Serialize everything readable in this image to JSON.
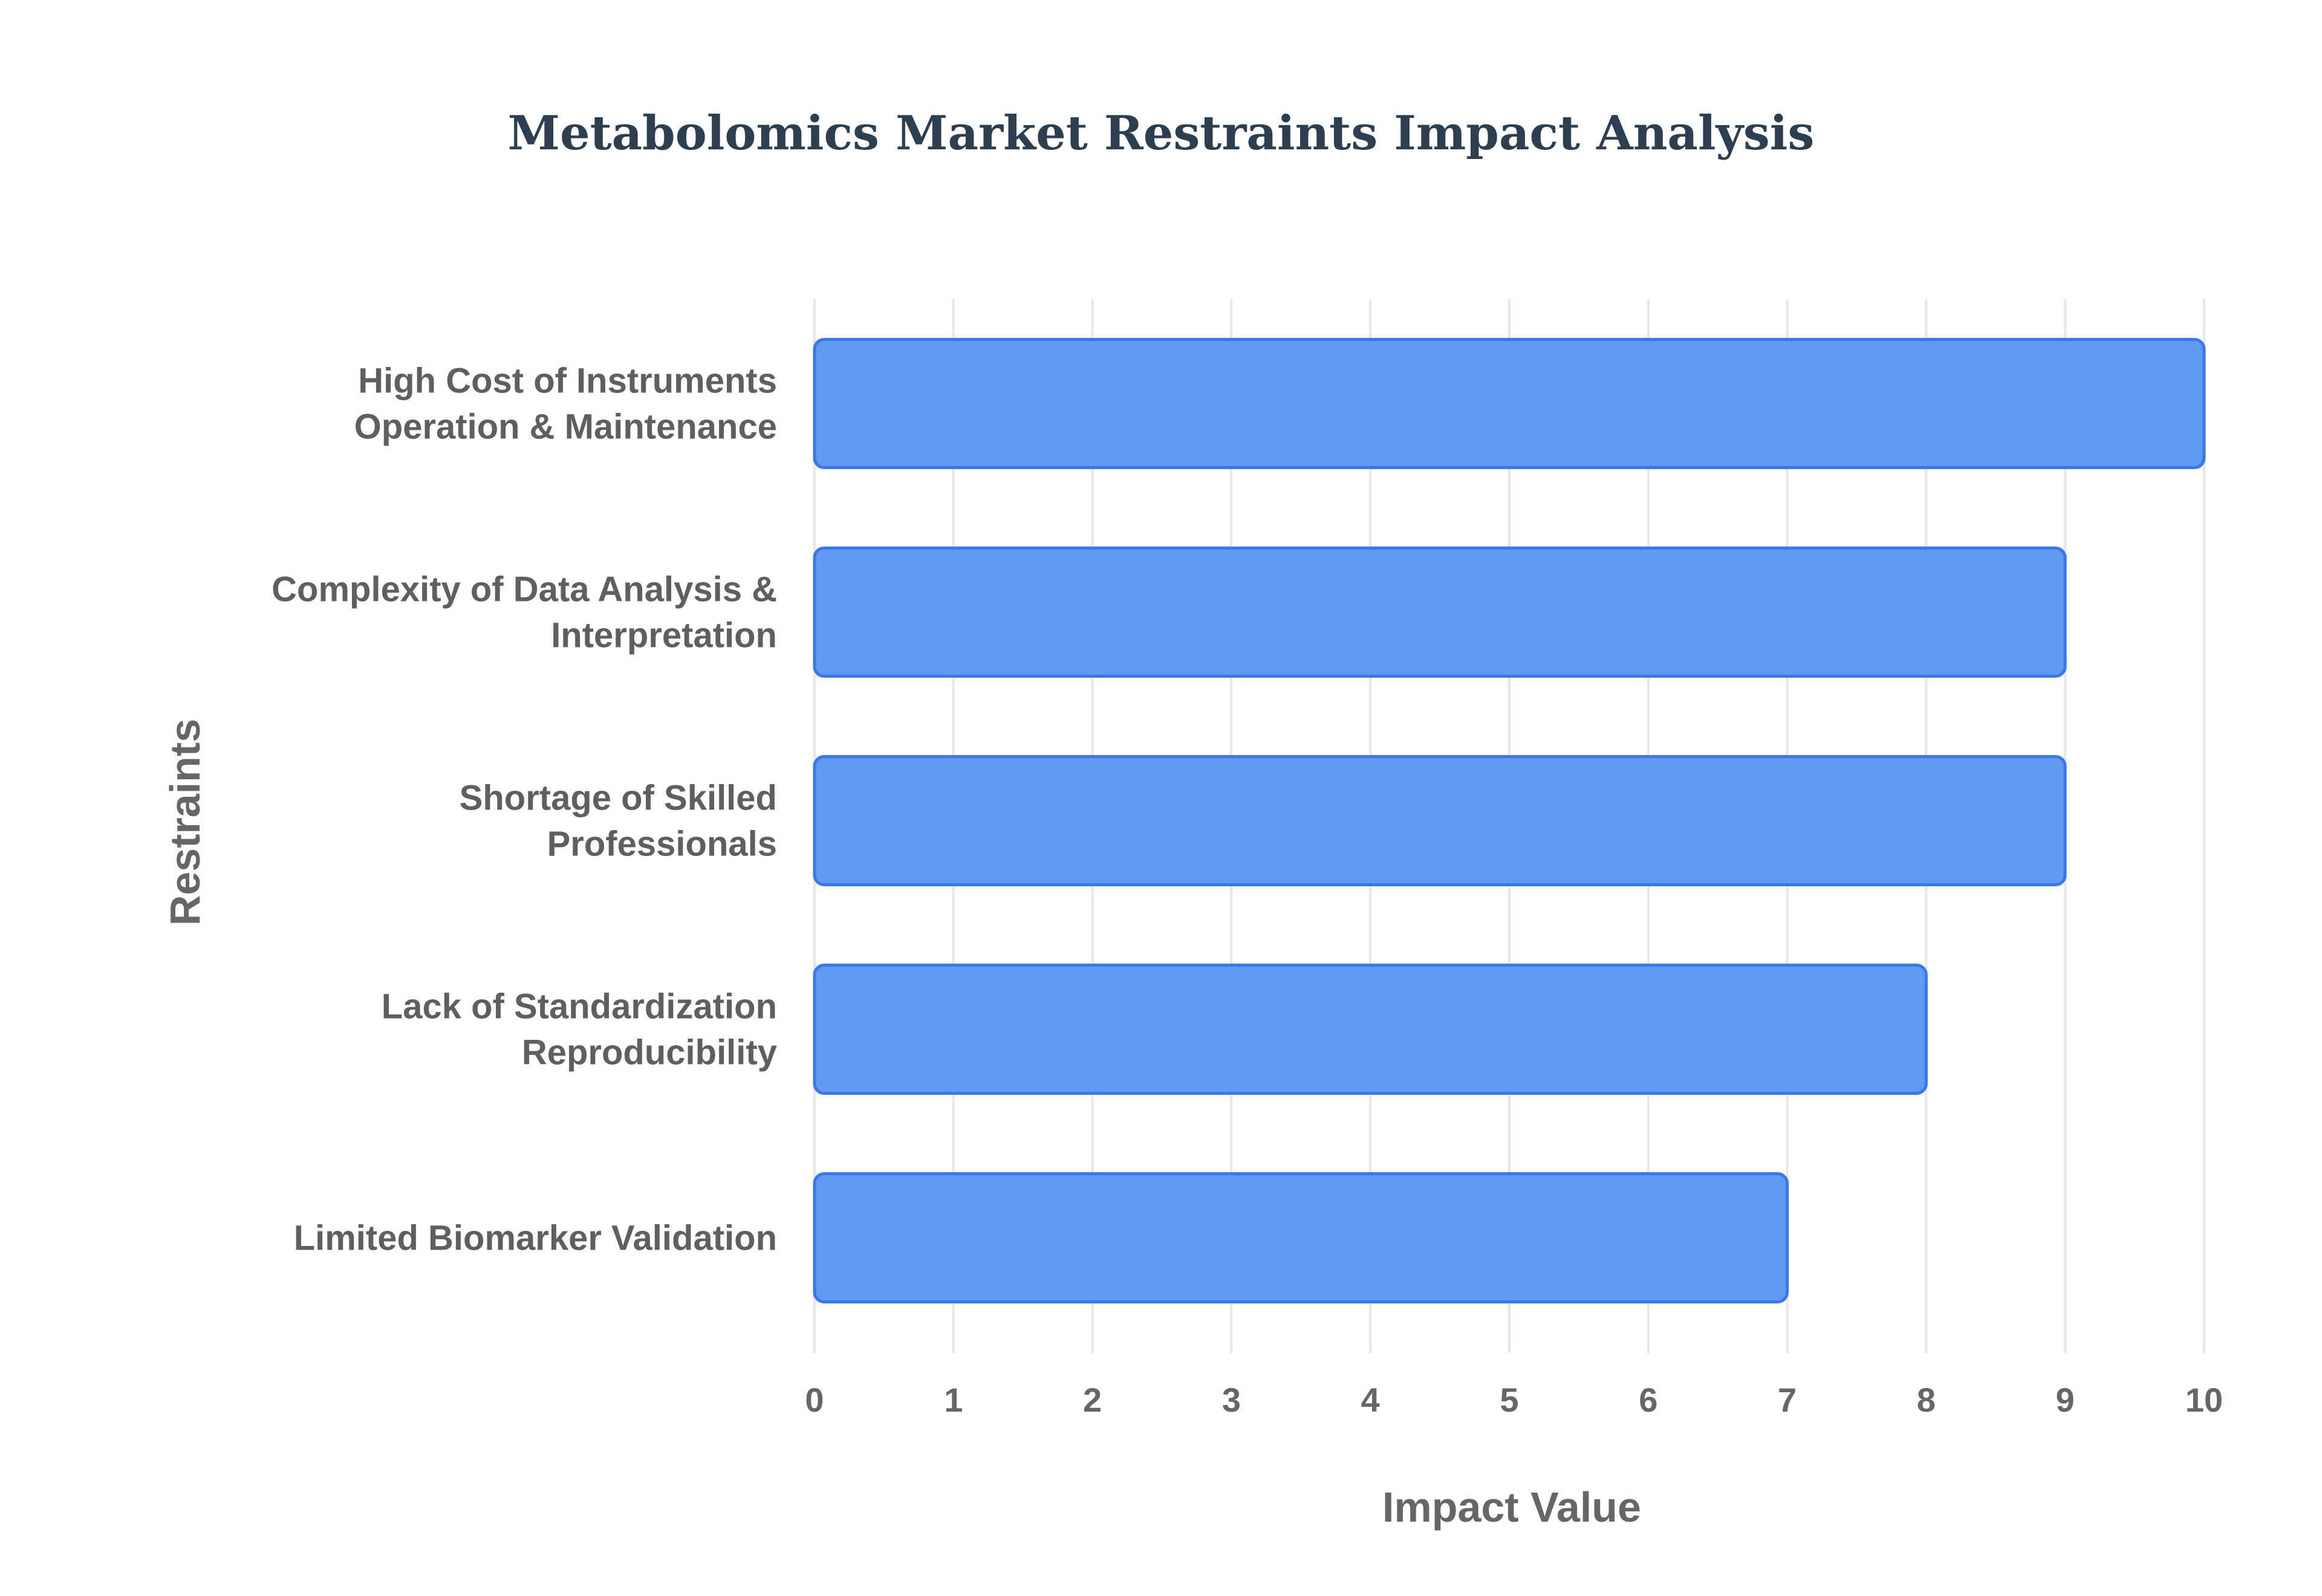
{
  "chart_data": {
    "type": "bar",
    "orientation": "horizontal",
    "title": "Metabolomics Market Restraints Impact Analysis",
    "xlabel": "Impact Value",
    "ylabel": "Restraints",
    "categories": [
      [
        "High Cost of Instruments",
        "Operation & Maintenance"
      ],
      [
        "Complexity of Data Analysis &",
        "Interpretation"
      ],
      [
        "Shortage of Skilled",
        "Professionals"
      ],
      [
        "Lack of Standardization",
        "Reproducibility"
      ],
      [
        "Limited Biomarker Validation"
      ]
    ],
    "values": [
      10,
      9,
      9,
      8,
      7
    ],
    "xlim": [
      0,
      10
    ],
    "xticks": [
      "0",
      "1",
      "2",
      "3",
      "4",
      "5",
      "6",
      "7",
      "8",
      "9",
      "10"
    ],
    "grid": true,
    "bar_color": "#6199f5",
    "bar_border_color": "#3b78e7",
    "grid_color": "#e6e6e6"
  }
}
